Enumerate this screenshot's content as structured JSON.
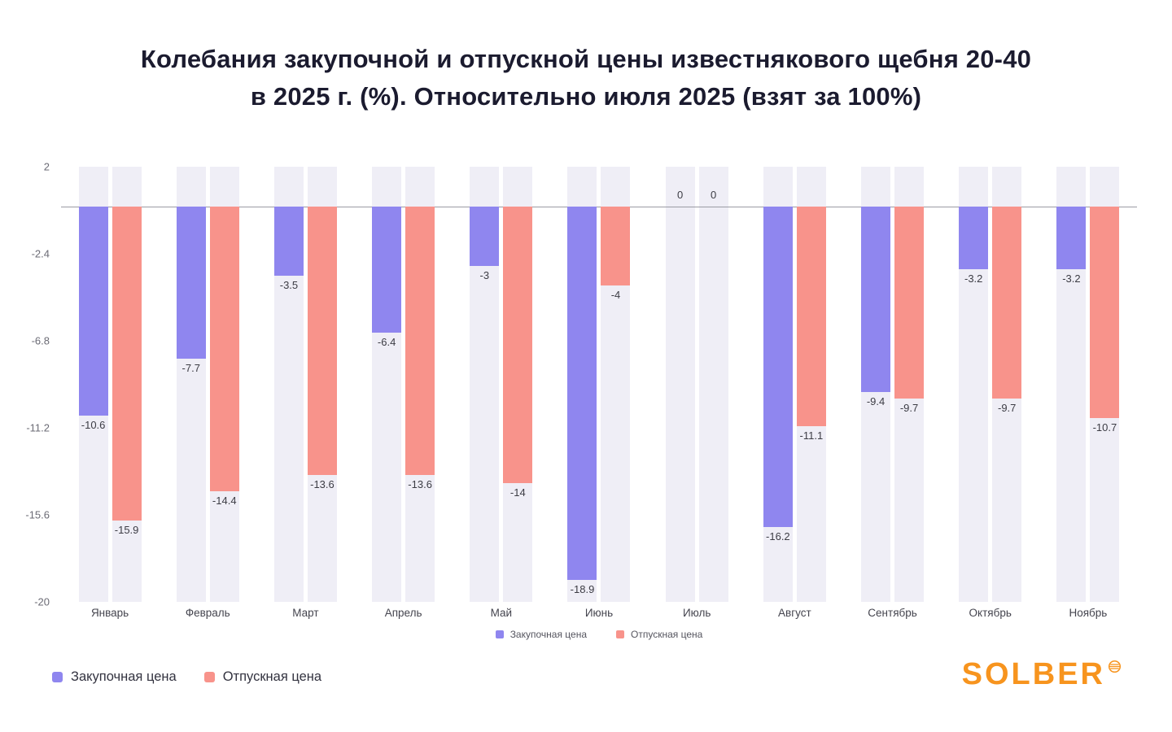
{
  "title_line1": "Колебания закупочной и отпускной цены известнякового щебня 20-40",
  "title_line2": "в 2025 г. (%). Относительно июля 2025 (взят за 100%)",
  "chart_data": {
    "type": "bar",
    "categories": [
      "Январь",
      "Февраль",
      "Март",
      "Апрель",
      "Май",
      "Июнь",
      "Июль",
      "Август",
      "Сентябрь",
      "Октябрь",
      "Ноябрь"
    ],
    "series": [
      {
        "name": "Закупочная цена",
        "color": "#8F86EF",
        "values": [
          -10.6,
          -7.7,
          -3.5,
          -6.4,
          -3,
          -18.9,
          0,
          -16.2,
          -9.4,
          -3.2,
          -3.2
        ]
      },
      {
        "name": "Отпускная цена",
        "color": "#F8938B",
        "values": [
          -15.9,
          -14.4,
          -13.6,
          -13.6,
          -14,
          -4,
          0,
          -11.1,
          -9.7,
          -9.7,
          -10.7
        ]
      }
    ],
    "y_ticks": [
      2,
      -2.4,
      -6.8,
      -11.2,
      -15.6,
      -20
    ],
    "ylim": [
      -20,
      2
    ],
    "band_color": "#EFEEF6",
    "legend_position": "bottom-center"
  },
  "legend": {
    "items": [
      {
        "label": "Закупочная цена",
        "color": "#8F86EF"
      },
      {
        "label": "Отпускная цена",
        "color": "#F8938B"
      }
    ]
  },
  "logo": {
    "text": "SOLBER",
    "color": "#F7941E"
  }
}
